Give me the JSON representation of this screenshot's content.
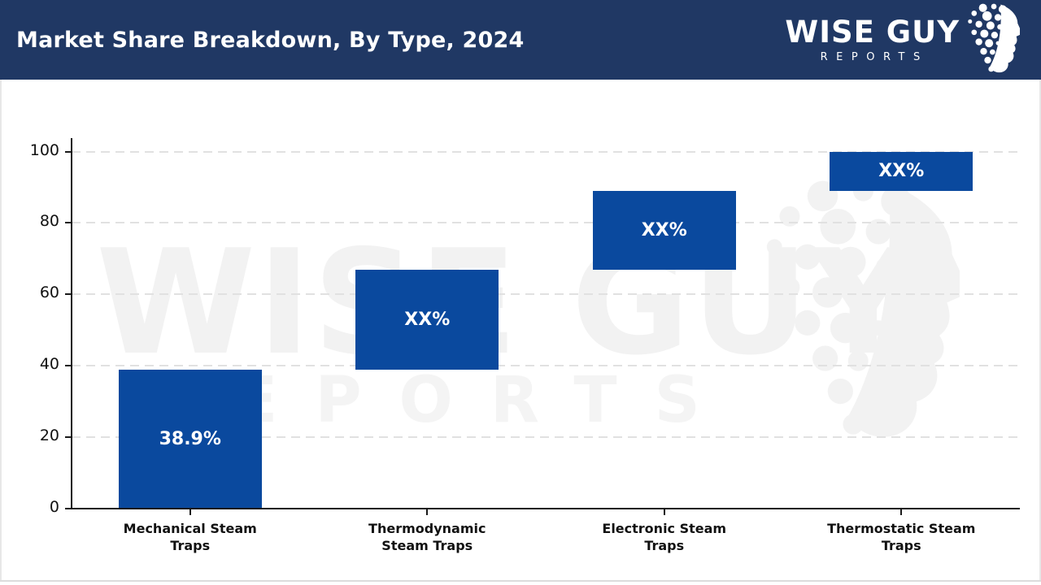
{
  "header": {
    "title": "Market Share Breakdown, By Type, 2024",
    "bg_color": "#203864",
    "logo": {
      "wordmark": "WISE GUY",
      "subtitle": "REPORTS"
    }
  },
  "watermark": {
    "wordmark": "WISE GUY",
    "subtitle": "REPORTS"
  },
  "chart_data": {
    "type": "bar",
    "variant": "waterfall",
    "title": "Market Share Breakdown, By Type, 2024",
    "categories": [
      "Mechanical Steam\nTraps",
      "Thermodynamic\nSteam Traps",
      "Electronic Steam\nTraps",
      "Thermostatic Steam\nTraps"
    ],
    "segments": [
      {
        "start": 0,
        "end": 38.9,
        "label": "38.9%"
      },
      {
        "start": 38.9,
        "end": 66.8,
        "label": "XX%"
      },
      {
        "start": 66.8,
        "end": 88.9,
        "label": "XX%"
      },
      {
        "start": 88.9,
        "end": 100,
        "label": "XX%"
      }
    ],
    "xlabel": "",
    "ylabel": "",
    "ylim": [
      0,
      100
    ],
    "yticks": [
      0,
      20,
      40,
      60,
      80,
      100
    ],
    "grid": "horizontal-dashed",
    "legend": "none",
    "bar_color": "#0a499e",
    "value_label_color": "#ffffff",
    "axis_color": "#1a1a1a",
    "gridline_color": "#e1e1e1"
  }
}
